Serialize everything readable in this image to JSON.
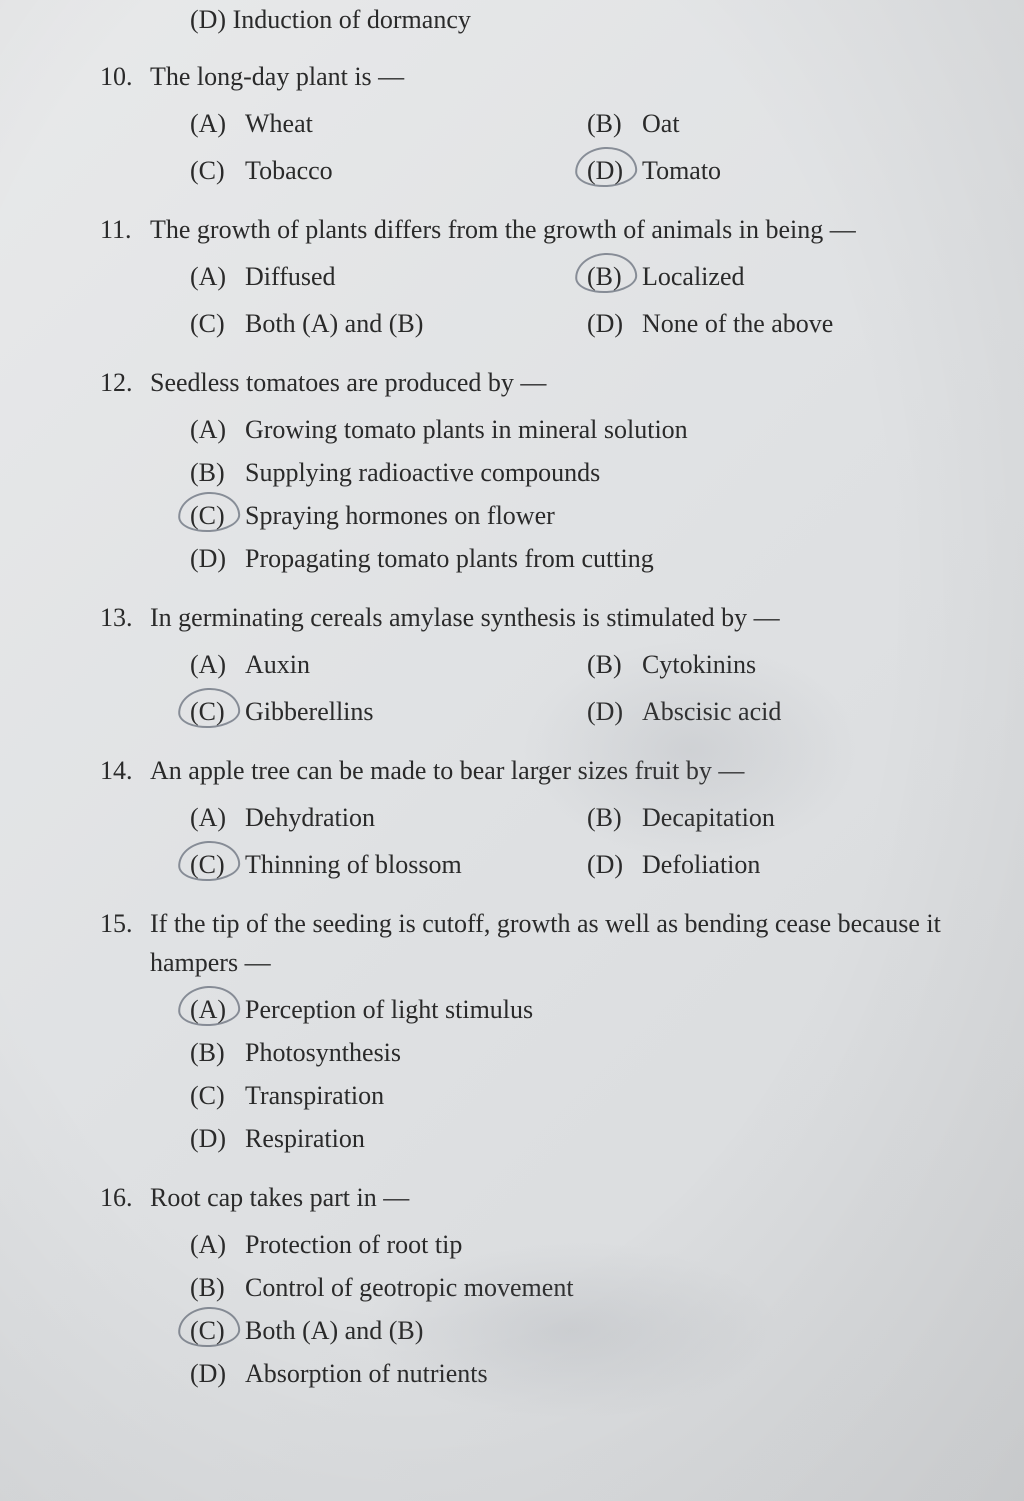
{
  "partial_option_d": "Induction of dormancy",
  "questions": [
    {
      "num": "10.",
      "text": "The long-day plant is —",
      "layout": "two",
      "options": [
        {
          "label": "(A)",
          "text": "Wheat"
        },
        {
          "label": "(B)",
          "text": "Oat"
        },
        {
          "label": "(C)",
          "text": "Tobacco"
        },
        {
          "label": "(D)",
          "text": "Tomato",
          "circled": true
        }
      ]
    },
    {
      "num": "11.",
      "text": "The growth of plants differs from the growth of animals in being —",
      "layout": "two",
      "options": [
        {
          "label": "(A)",
          "text": "Diffused"
        },
        {
          "label": "(B)",
          "text": "Localized",
          "circled": true
        },
        {
          "label": "(C)",
          "text": "Both (A) and (B)"
        },
        {
          "label": "(D)",
          "text": "None of the above"
        }
      ]
    },
    {
      "num": "12.",
      "text": "Seedless tomatoes are produced by —",
      "layout": "one",
      "options": [
        {
          "label": "(A)",
          "text": "Growing tomato plants in mineral solution"
        },
        {
          "label": "(B)",
          "text": "Supplying radioactive compounds"
        },
        {
          "label": "(C)",
          "text": "Spraying hormones on flower",
          "circled": true
        },
        {
          "label": "(D)",
          "text": "Propagating tomato plants from cutting"
        }
      ]
    },
    {
      "num": "13.",
      "text": "In germinating cereals amylase synthesis is stimulated by —",
      "layout": "two",
      "options": [
        {
          "label": "(A)",
          "text": "Auxin"
        },
        {
          "label": "(B)",
          "text": "Cytokinins"
        },
        {
          "label": "(C)",
          "text": "Gibberellins",
          "circled": true
        },
        {
          "label": "(D)",
          "text": "Abscisic acid"
        }
      ]
    },
    {
      "num": "14.",
      "text": "An apple tree can be made to bear larger sizes fruit by —",
      "layout": "two",
      "options": [
        {
          "label": "(A)",
          "text": "Dehydration"
        },
        {
          "label": "(B)",
          "text": "Decapitation"
        },
        {
          "label": "(C)",
          "text": "Thinning of blossom",
          "circled": true
        },
        {
          "label": "(D)",
          "text": "Defoliation"
        }
      ]
    },
    {
      "num": "15.",
      "text": "If the tip of the seeding is cutoff, growth as well as bending cease because it hampers —",
      "layout": "one",
      "options": [
        {
          "label": "(A)",
          "text": "Perception of light stimulus",
          "circled": true
        },
        {
          "label": "(B)",
          "text": "Photosynthesis"
        },
        {
          "label": "(C)",
          "text": "Transpiration"
        },
        {
          "label": "(D)",
          "text": "Respiration"
        }
      ]
    },
    {
      "num": "16.",
      "text": "Root cap takes part in —",
      "layout": "one",
      "options": [
        {
          "label": "(A)",
          "text": "Protection of root tip"
        },
        {
          "label": "(B)",
          "text": "Control of geotropic movement"
        },
        {
          "label": "(C)",
          "text": "Both (A) and (B)",
          "circled": true
        },
        {
          "label": "(D)",
          "text": "Absorption of nutrients"
        }
      ]
    }
  ]
}
